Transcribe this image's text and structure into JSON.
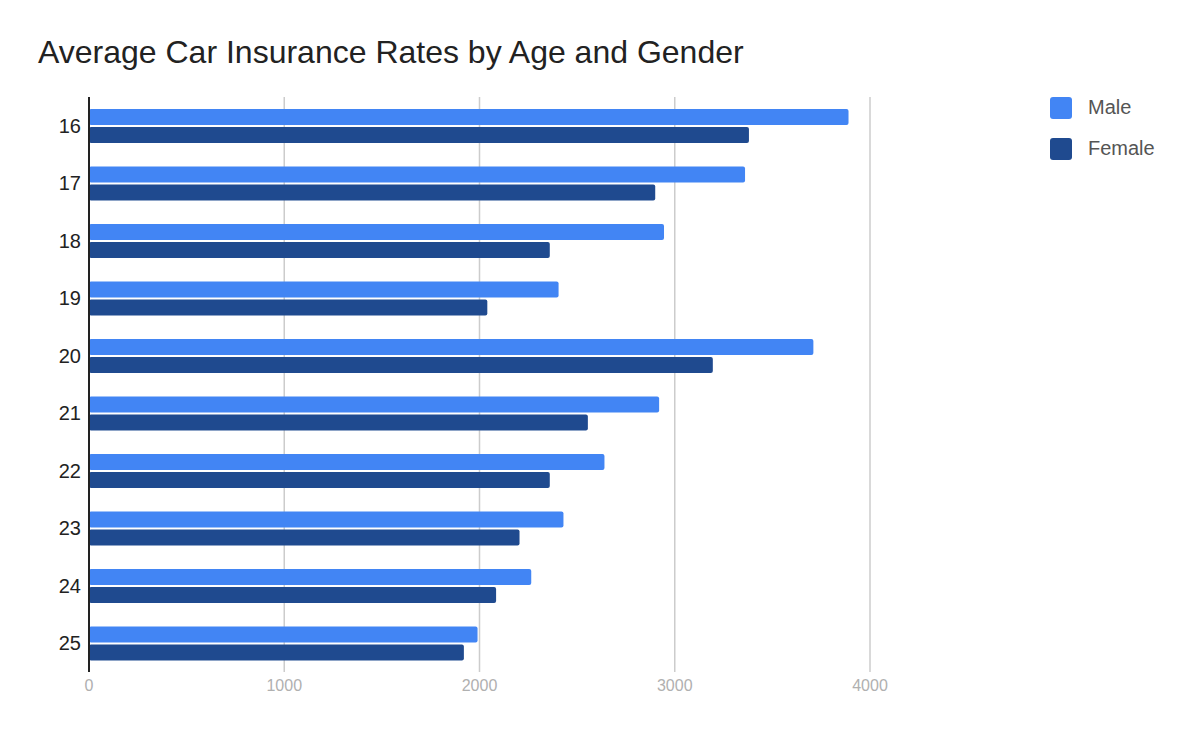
{
  "chart_data": {
    "type": "bar",
    "title": "Average Car Insurance Rates by Age and Gender",
    "orientation": "horizontal",
    "categories": [
      "16",
      "17",
      "18",
      "19",
      "20",
      "21",
      "22",
      "23",
      "24",
      "25"
    ],
    "series": [
      {
        "name": "Male",
        "color": "#4285f4",
        "values": [
          3890,
          3360,
          2945,
          2405,
          3710,
          2920,
          2640,
          2430,
          2265,
          1990
        ]
      },
      {
        "name": "Female",
        "color": "#1f4a8f",
        "values": [
          3380,
          2900,
          2360,
          2040,
          3195,
          2555,
          2360,
          2205,
          2085,
          1920
        ]
      }
    ],
    "xlim": [
      0,
      4000
    ],
    "xticks": [
      0,
      1000,
      2000,
      3000,
      4000
    ],
    "grid": true,
    "legend": "top-right"
  }
}
